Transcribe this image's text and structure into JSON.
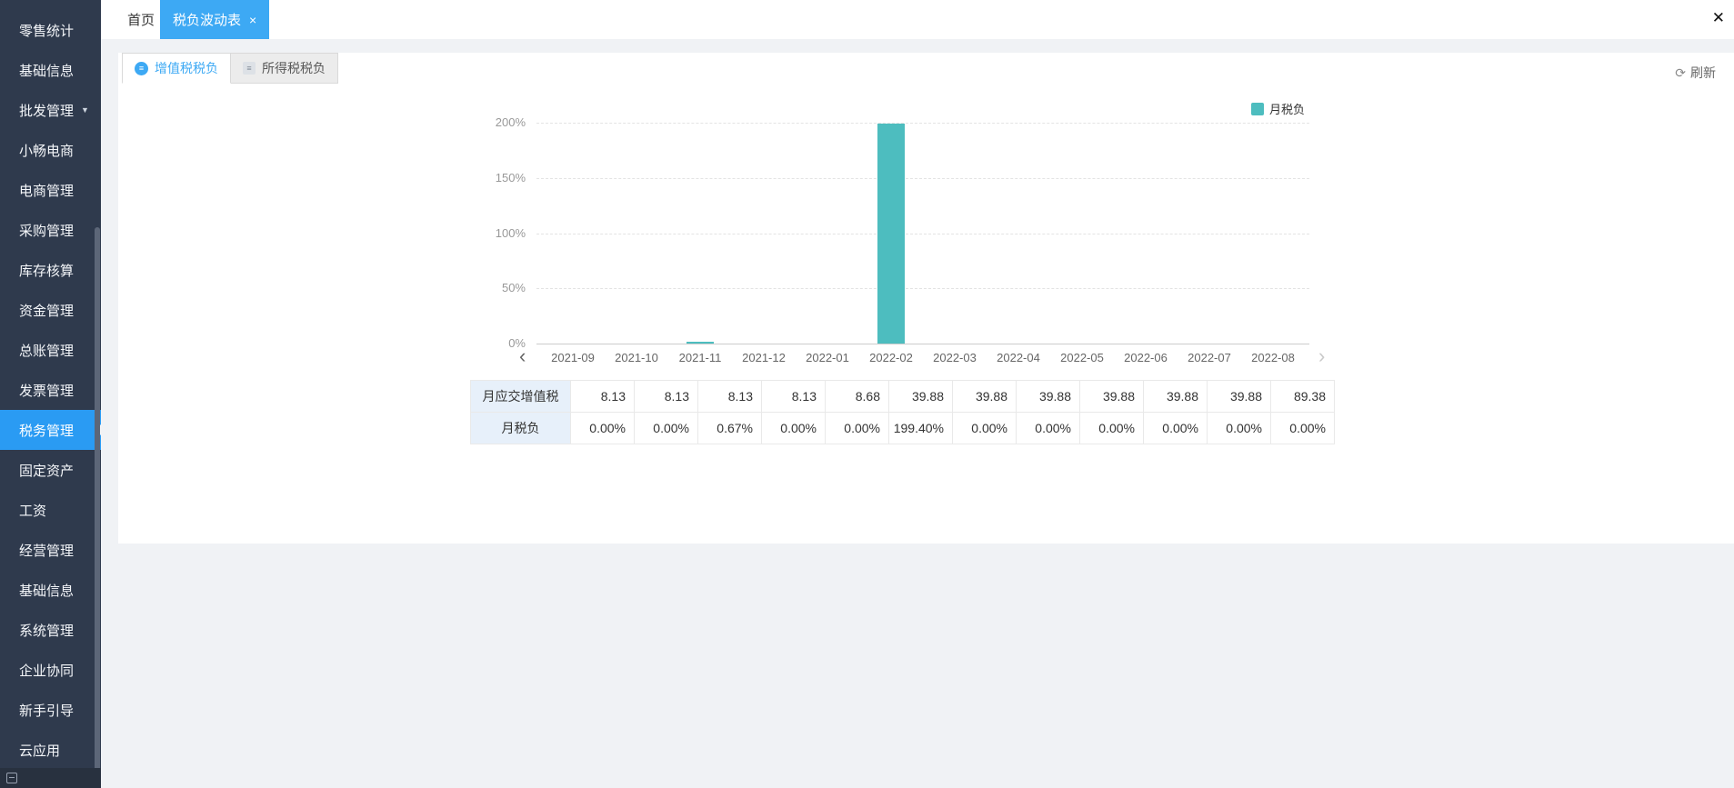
{
  "colors": {
    "sidebar_bg": "#2f3a4d",
    "sidebar_active": "#2a9bf3",
    "topbar_tab_active": "#3da9f4",
    "bar_teal": "#4dbdbf",
    "table_header_bg": "#e7f0fa"
  },
  "sidebar": {
    "items": [
      {
        "label": "零售统计"
      },
      {
        "label": "基础信息"
      },
      {
        "label": "批发管理",
        "has_arrow": true
      },
      {
        "label": "小畅电商"
      },
      {
        "label": "电商管理"
      },
      {
        "label": "采购管理"
      },
      {
        "label": "库存核算"
      },
      {
        "label": "资金管理"
      },
      {
        "label": "总账管理"
      },
      {
        "label": "发票管理"
      },
      {
        "label": "税务管理",
        "active": true
      },
      {
        "label": "固定资产"
      },
      {
        "label": "工资"
      },
      {
        "label": "经营管理"
      },
      {
        "label": "基础信息"
      },
      {
        "label": "系统管理"
      },
      {
        "label": "企业协同"
      },
      {
        "label": "新手引导"
      },
      {
        "label": "云应用"
      }
    ]
  },
  "topbar": {
    "home_tab": "首页",
    "active_tab": "税负波动表",
    "tab_close": "×",
    "window_close": "✕"
  },
  "content": {
    "tabs": [
      {
        "label": "增值税税负",
        "active": true
      },
      {
        "label": "所得税税负",
        "active": false
      }
    ],
    "refresh_label": "刷新"
  },
  "chart_data": {
    "type": "bar",
    "title": "",
    "legend": [
      "月税负"
    ],
    "legend_position": "top-right",
    "categories": [
      "2021-09",
      "2021-10",
      "2021-11",
      "2021-12",
      "2022-01",
      "2022-02",
      "2022-03",
      "2022-04",
      "2022-05",
      "2022-06",
      "2022-07",
      "2022-08"
    ],
    "series": [
      {
        "name": "月税负",
        "values": [
          0,
          0,
          0.67,
          0,
          0,
          199.4,
          0,
          0,
          0,
          0,
          0,
          0
        ]
      }
    ],
    "ytick_labels": [
      "0%",
      "50%",
      "100%",
      "150%",
      "200%"
    ],
    "ylim": [
      0,
      200
    ],
    "bar_color": "#4dbdbf",
    "grid": "dashed-horizontal"
  },
  "table": {
    "rows": [
      {
        "header": "月应交增值税",
        "values": [
          "8.13",
          "8.13",
          "8.13",
          "8.13",
          "8.68",
          "39.88",
          "39.88",
          "39.88",
          "39.88",
          "39.88",
          "39.88",
          "89.38"
        ]
      },
      {
        "header": "月税负",
        "values": [
          "0.00%",
          "0.00%",
          "0.67%",
          "0.00%",
          "0.00%",
          "199.40%",
          "0.00%",
          "0.00%",
          "0.00%",
          "0.00%",
          "0.00%",
          "0.00%"
        ]
      }
    ]
  }
}
